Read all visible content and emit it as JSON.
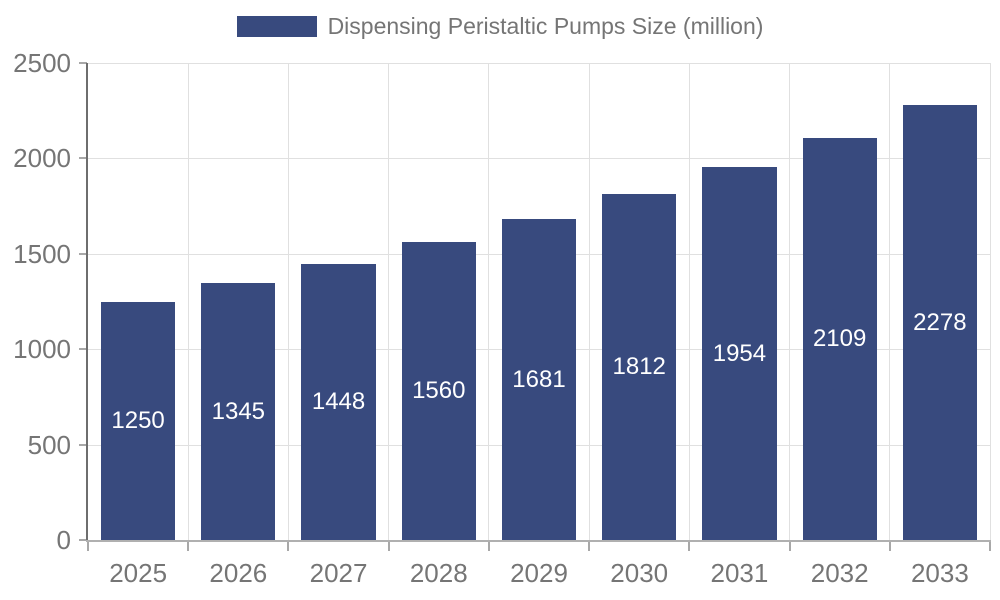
{
  "chart_data": {
    "type": "bar",
    "title": "Dispensing Peristaltic Pumps Size (million)",
    "legend": "Dispensing Peristaltic Pumps Size (million)",
    "legend_position": "top-center",
    "categories": [
      "2025",
      "2026",
      "2027",
      "2028",
      "2029",
      "2030",
      "2031",
      "2032",
      "2033"
    ],
    "values": [
      1250,
      1345,
      1448,
      1560,
      1681,
      1812,
      1954,
      2109,
      2278
    ],
    "xlabel": "",
    "ylabel": "",
    "ylim": [
      0,
      2500
    ],
    "yticks": [
      0,
      500,
      1000,
      1500,
      2000,
      2500
    ],
    "grid": true,
    "bar_width_fraction": 0.74,
    "colors": {
      "bar": "#384a7e",
      "grid": "#e0e0e0",
      "axis_y_line": "#6e6e6e",
      "axis_x_line": "#b0b0b0",
      "tick_mark": "#a8a8a8",
      "tick_text": "#757575",
      "legend_text": "#757575",
      "value_label": "#ffffff",
      "background": "#ffffff"
    }
  }
}
